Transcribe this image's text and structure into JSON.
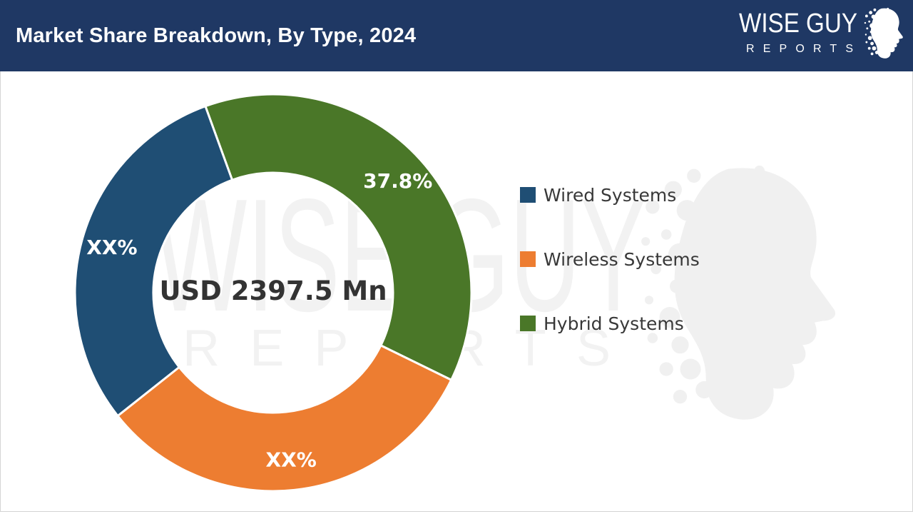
{
  "header": {
    "title": "Market Share Breakdown, By Type, 2024",
    "logo": {
      "name": "WISE GUY",
      "tagline": "REPORTS"
    }
  },
  "watermark": {
    "name": "WISE GUY",
    "tagline": "REPORTS"
  },
  "chart_data": {
    "type": "pie",
    "subtype": "donut",
    "title": "Market Share Breakdown, By Type, 2024",
    "center_label": "USD 2397.5 Mn",
    "start_angle_deg": -20,
    "direction": "clockwise",
    "segments_clockwise": [
      {
        "name": "Hybrid Systems",
        "color": "#4A7728",
        "value_pct": 37.8,
        "displayed_label": "37.8%"
      },
      {
        "name": "Wireless Systems",
        "color": "#ED7D31",
        "value_pct": 32.1,
        "displayed_label": "XX%"
      },
      {
        "name": "Wired Systems",
        "color": "#1F4E74",
        "value_pct": 30.1,
        "displayed_label": "XX%"
      }
    ],
    "legend": {
      "position": "right",
      "items": [
        {
          "label": "Wired Systems",
          "color": "#1F4E74"
        },
        {
          "label": "Wireless Systems",
          "color": "#ED7D31"
        },
        {
          "label": "Hybrid Systems",
          "color": "#4A7728"
        }
      ]
    }
  },
  "colors": {
    "header_bg": "#1F3864",
    "segment_blue": "#1F4E74",
    "segment_orange": "#ED7D31",
    "segment_green": "#4A7728",
    "center_text": "#333333",
    "watermark": "#F2F2F2"
  }
}
